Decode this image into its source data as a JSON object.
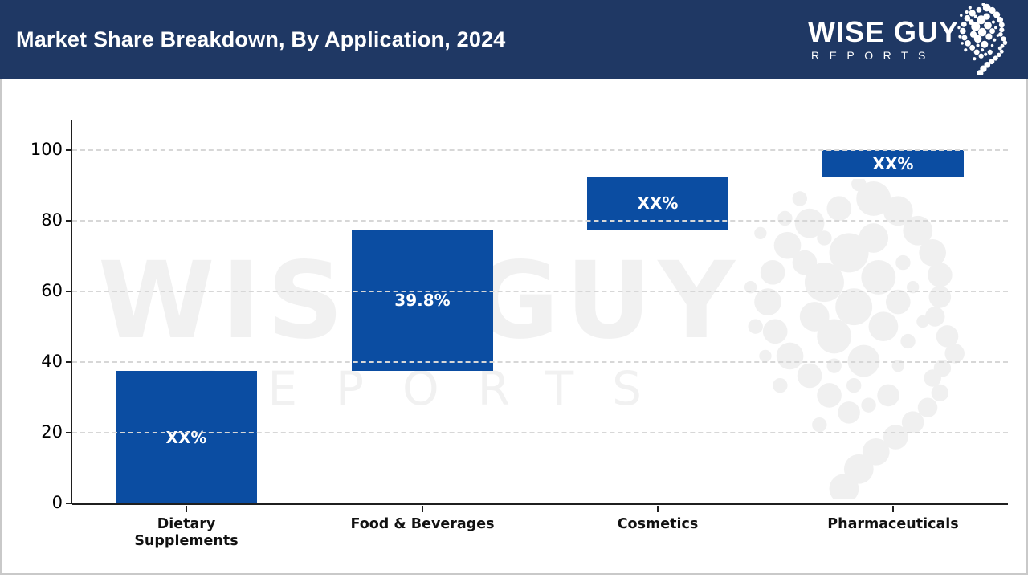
{
  "header": {
    "title": "Market Share Breakdown, By Application, 2024",
    "bg_color": "#1f3864",
    "logo": {
      "line1": "WISE GUY",
      "line2": "REPORTS"
    }
  },
  "watermark": {
    "line1": "WISE GUY",
    "line2": "REPORTS"
  },
  "chart_data": {
    "type": "bar",
    "subtype": "waterfall",
    "title": "Market Share Breakdown, By Application, 2024",
    "categories": [
      "Dietary\nSupplements",
      "Food & Beverages",
      "Cosmetics",
      "Pharmaceuticals"
    ],
    "segments": [
      {
        "category": "Dietary Supplements",
        "start": 0,
        "end": 37.5,
        "label": "XX%"
      },
      {
        "category": "Food & Beverages",
        "start": 37.5,
        "end": 77.3,
        "label": "39.8%"
      },
      {
        "category": "Cosmetics",
        "start": 77.3,
        "end": 92.5,
        "label": "XX%"
      },
      {
        "category": "Pharmaceuticals",
        "start": 92.5,
        "end": 100,
        "label": "XX%"
      }
    ],
    "yticks": [
      0,
      20,
      40,
      60,
      80,
      100
    ],
    "ylim": [
      0,
      108
    ],
    "xlabel": "",
    "ylabel": "",
    "grid": "horizontal-dashed-over-bars",
    "legend": null,
    "bar_color": "#0b4da2",
    "bar_label_color": "#ffffff",
    "axis_color": "#1f1f1f",
    "gridline_color": "#d7d7d7",
    "watermark_color": "#f1f1f1"
  }
}
